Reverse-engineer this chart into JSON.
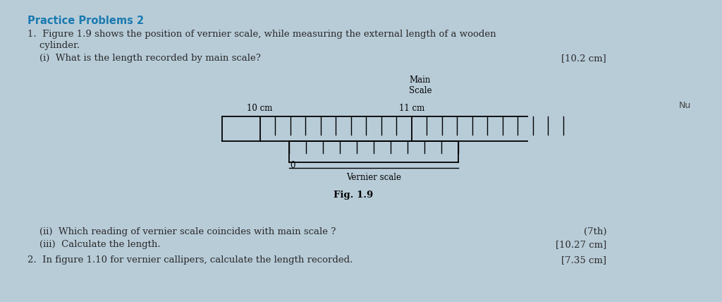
{
  "bg_color": "#b8ccd8",
  "page_color": "#c5d5e0",
  "right_strip_color": "#c8a870",
  "blue_pen_color": "#3a7ab0",
  "text_color": "#2a2a2a",
  "title": "Practice Problems 2",
  "title_color": "#1a7ab0",
  "q1_line1": "1.  Figure 1.9 shows the position of vernier scale, while measuring the external length of a wooden",
  "q1_line2": "    cylinder.",
  "q1i_text": "    (i)  What is the length recorded by main scale?",
  "q1i_answer": "[10.2 cm]",
  "q1ii_text": "    (ii)  Which reading of vernier scale coincides with main scale ?",
  "q1ii_answer": "(7th)",
  "q1iii_text": "    (iii)  Calculate the length.",
  "q1iii_answer": "[10.27 cm]",
  "q2_text": "2.  In figure 1.10 for vernier callipers, calculate the length recorded.",
  "q2_answer": "[7.35 cm]",
  "fig_caption": "Fig. 1.9",
  "main_scale_label": "Main\nScale",
  "main_label_10": "10 cm",
  "main_label_11": "11 cm",
  "vernier_label": "Vernier scale",
  "vernier_zero_label": "0",
  "nu_label": "Nu"
}
